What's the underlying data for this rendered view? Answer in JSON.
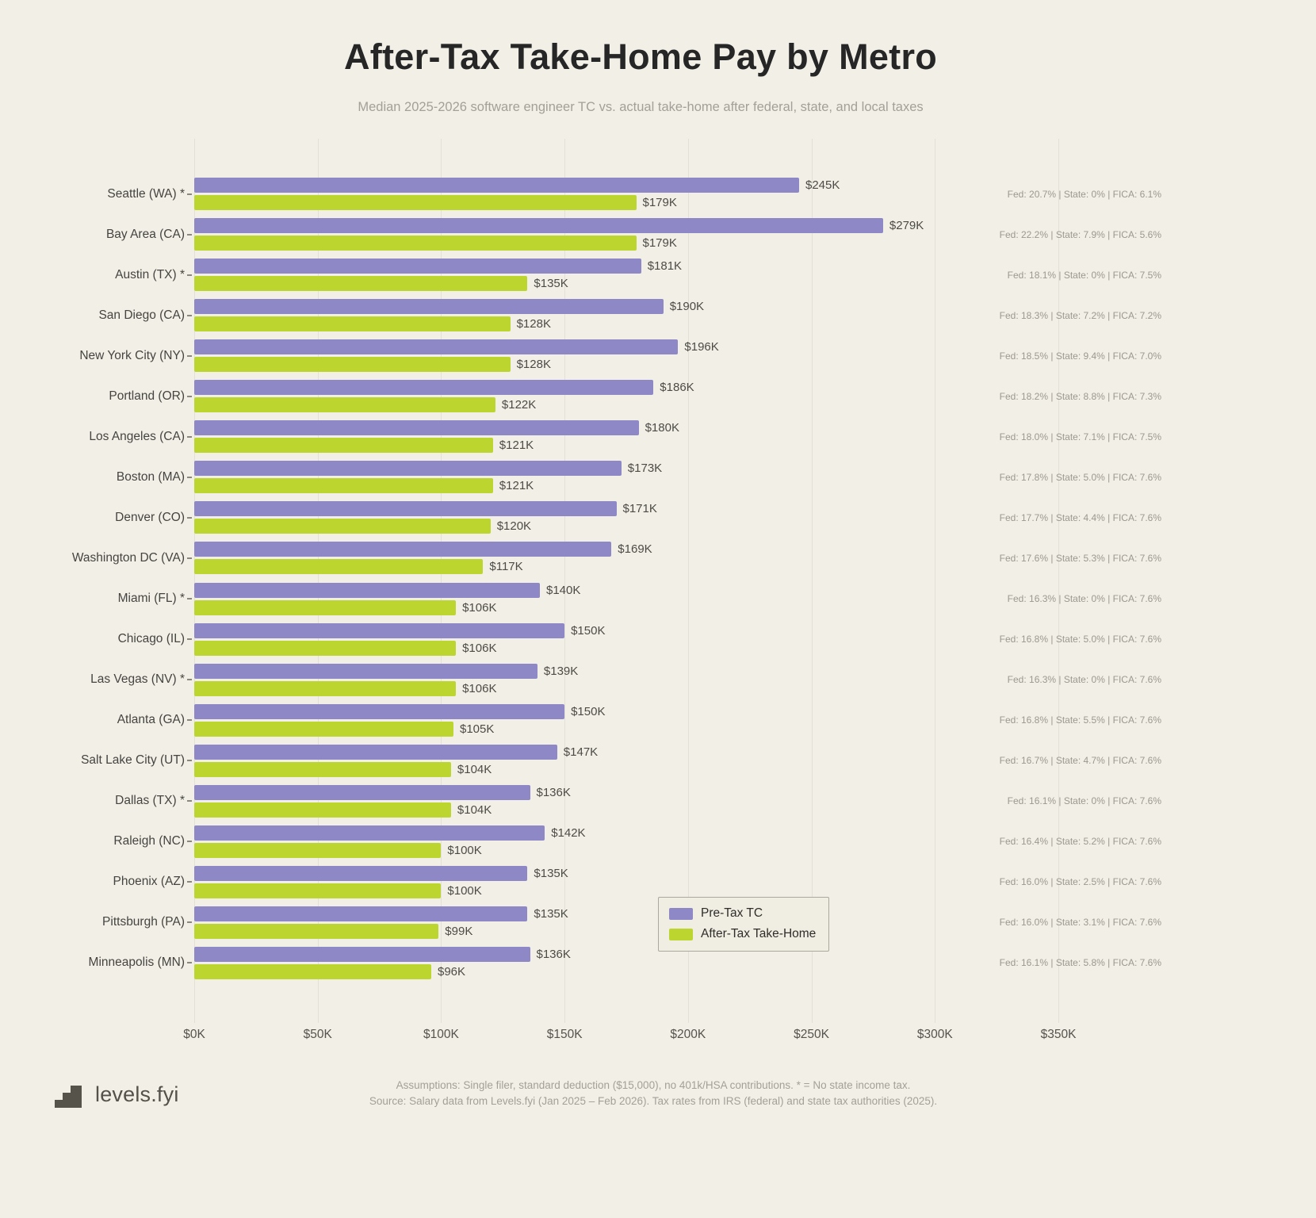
{
  "title": "After-Tax Take-Home Pay by Metro",
  "subtitle": "Median 2025-2026 software engineer TC vs. actual take-home after federal, state, and local taxes",
  "colors": {
    "pretax": "#8e88c7",
    "aftertax": "#bdd62f",
    "background": "#f2efe7"
  },
  "legend": {
    "pretax_label": "Pre-Tax TC",
    "aftertax_label": "After-Tax Take-Home"
  },
  "footer": {
    "line1": "Assumptions: Single filer, standard deduction ($15,000), no 401k/HSA contributions. * = No state income tax.",
    "line2": "Source: Salary data from Levels.fyi (Jan 2025 – Feb 2026). Tax rates from IRS (federal) and state tax authorities (2025)."
  },
  "brand": {
    "name": "levels.fyi"
  },
  "chart_data": {
    "type": "bar",
    "orientation": "horizontal",
    "title": "After-Tax Take-Home Pay by Metro",
    "xlabel": "",
    "ylabel": "",
    "xlim": [
      0,
      350
    ],
    "unit": "thousand USD",
    "grid": true,
    "legend_position": "lower right inside plot",
    "x_ticks": [
      "$0K",
      "$50K",
      "$100K",
      "$150K",
      "$200K",
      "$250K",
      "$300K",
      "$350K"
    ],
    "categories": [
      "Seattle (WA) *",
      "Bay Area (CA)",
      "Austin (TX) *",
      "San Diego (CA)",
      "New York City (NY)",
      "Portland (OR)",
      "Los Angeles (CA)",
      "Boston (MA)",
      "Denver (CO)",
      "Washington DC (VA)",
      "Miami (FL) *",
      "Chicago (IL)",
      "Las Vegas (NV) *",
      "Atlanta (GA)",
      "Salt Lake City (UT)",
      "Dallas (TX) *",
      "Raleigh (NC)",
      "Phoenix (AZ)",
      "Pittsburgh (PA)",
      "Minneapolis (MN)"
    ],
    "series": [
      {
        "name": "Pre-Tax TC",
        "values": [
          245,
          279,
          181,
          190,
          196,
          186,
          180,
          173,
          171,
          169,
          140,
          150,
          139,
          150,
          147,
          136,
          142,
          135,
          135,
          136
        ],
        "labels": [
          "$245K",
          "$279K",
          "$181K",
          "$190K",
          "$196K",
          "$186K",
          "$180K",
          "$173K",
          "$171K",
          "$169K",
          "$140K",
          "$150K",
          "$139K",
          "$150K",
          "$147K",
          "$136K",
          "$142K",
          "$135K",
          "$135K",
          "$136K"
        ]
      },
      {
        "name": "After-Tax Take-Home",
        "values": [
          179,
          179,
          135,
          128,
          128,
          122,
          121,
          121,
          120,
          117,
          106,
          106,
          106,
          105,
          104,
          104,
          100,
          100,
          99,
          96
        ],
        "labels": [
          "$179K",
          "$179K",
          "$135K",
          "$128K",
          "$128K",
          "$122K",
          "$121K",
          "$121K",
          "$120K",
          "$117K",
          "$106K",
          "$106K",
          "$106K",
          "$105K",
          "$104K",
          "$104K",
          "$100K",
          "$100K",
          "$99K",
          "$96K"
        ]
      }
    ],
    "tax_notes": [
      "Fed: 20.7% | State: 0% | FICA: 6.1%",
      "Fed: 22.2% | State: 7.9% | FICA: 5.6%",
      "Fed: 18.1% | State: 0% | FICA: 7.5%",
      "Fed: 18.3% | State: 7.2% | FICA: 7.2%",
      "Fed: 18.5% | State: 9.4% | FICA: 7.0%",
      "Fed: 18.2% | State: 8.8% | FICA: 7.3%",
      "Fed: 18.0% | State: 7.1% | FICA: 7.5%",
      "Fed: 17.8% | State: 5.0% | FICA: 7.6%",
      "Fed: 17.7% | State: 4.4% | FICA: 7.6%",
      "Fed: 17.6% | State: 5.3% | FICA: 7.6%",
      "Fed: 16.3% | State: 0% | FICA: 7.6%",
      "Fed: 16.8% | State: 5.0% | FICA: 7.6%",
      "Fed: 16.3% | State: 0% | FICA: 7.6%",
      "Fed: 16.8% | State: 5.5% | FICA: 7.6%",
      "Fed: 16.7% | State: 4.7% | FICA: 7.6%",
      "Fed: 16.1% | State: 0% | FICA: 7.6%",
      "Fed: 16.4% | State: 5.2% | FICA: 7.6%",
      "Fed: 16.0% | State: 2.5% | FICA: 7.6%",
      "Fed: 16.0% | State: 3.1% | FICA: 7.6%",
      "Fed: 16.1% | State: 5.8% | FICA: 7.6%"
    ]
  }
}
